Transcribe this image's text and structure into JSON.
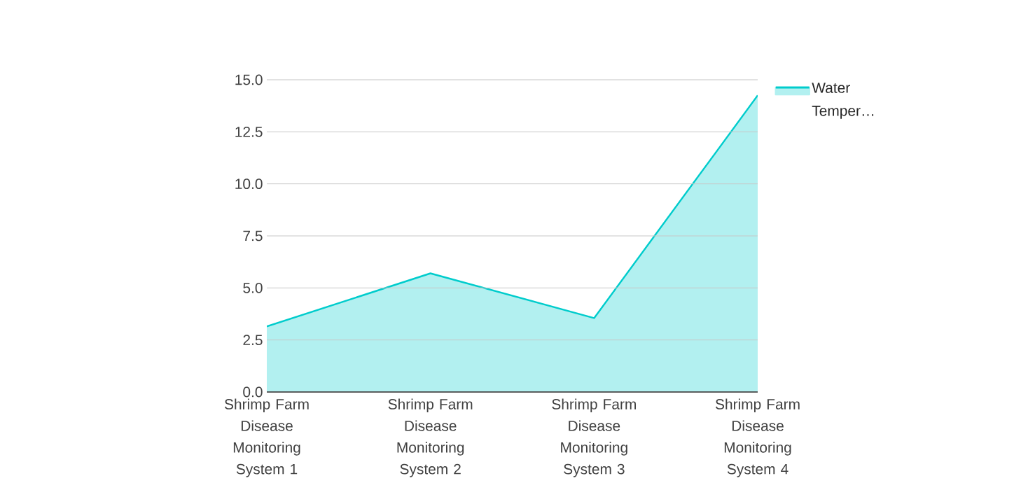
{
  "chart_data": {
    "type": "area",
    "categories": [
      "Shrimp Farm Disease Monitoring System 1",
      "Shrimp Farm Disease Monitoring System 2",
      "Shrimp Farm Disease Monitoring System 3",
      "Shrimp Farm Disease Monitoring System 4"
    ],
    "series": [
      {
        "name": "Water Temper…",
        "color": "#00cccc",
        "values": [
          3.15,
          5.7,
          3.55,
          14.25
        ]
      }
    ],
    "ylim": [
      0,
      15
    ],
    "yticks": [
      {
        "value": 0,
        "label": "0.0"
      },
      {
        "value": 2.5,
        "label": "2.5"
      },
      {
        "value": 5,
        "label": "5.0"
      },
      {
        "value": 7.5,
        "label": "7.5"
      },
      {
        "value": 10,
        "label": "10.0"
      },
      {
        "value": 12.5,
        "label": "12.5"
      },
      {
        "value": 15,
        "label": "15.0"
      }
    ],
    "grid": "y",
    "legend": "top right"
  }
}
